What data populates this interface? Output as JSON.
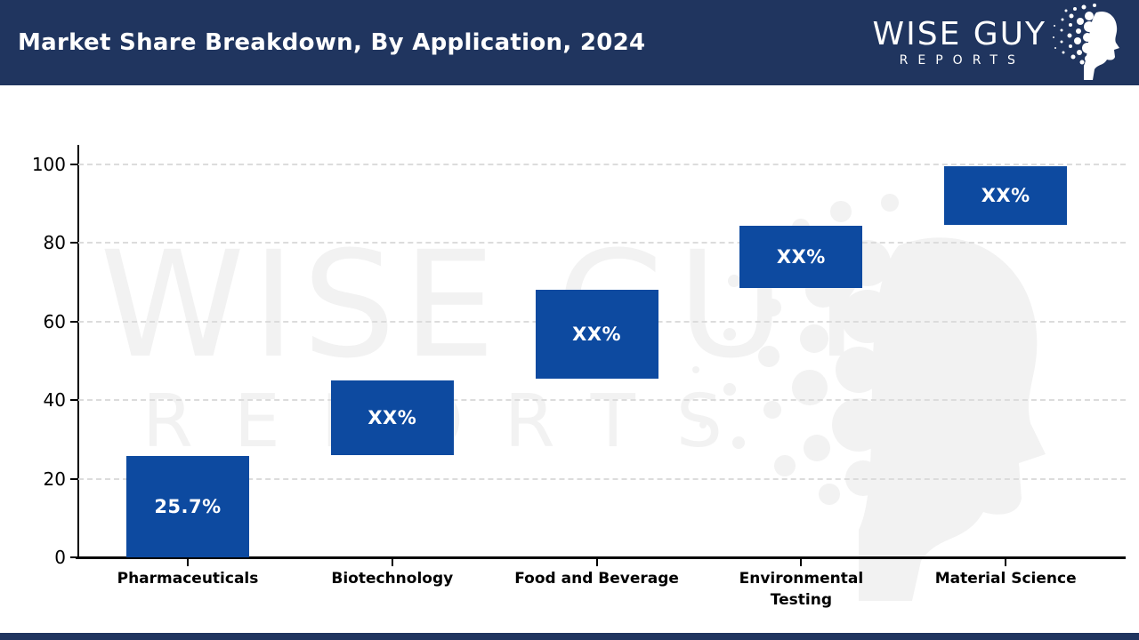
{
  "header": {
    "title": "Market Share Breakdown, By Application, 2024",
    "logo": {
      "line1": "WISE GUY",
      "line2": "REPORTS"
    }
  },
  "watermark": {
    "line1": "WISE GUY",
    "line2": "REPORTS"
  },
  "footer": {},
  "colors": {
    "header_bg": "#20355f",
    "footer_bg": "#20355f",
    "bar": "#0d4aa0",
    "bar_label": "#ffffff",
    "grid": "#dcdcdc",
    "axis": "#000000",
    "watermark": "#f2f2f2"
  },
  "chart_data": {
    "type": "bar",
    "subtype": "waterfall-floating-bars",
    "title": "Market Share Breakdown, By Application, 2024",
    "categories": [
      "Pharmaceuticals",
      "Biotechnology",
      "Food and Beverage",
      "Environmental\nTesting",
      "Material Science"
    ],
    "bars": [
      {
        "category": "Pharmaceuticals",
        "label": "25.7%",
        "start": 0,
        "end": 25.7
      },
      {
        "category": "Biotechnology",
        "label": "XX%",
        "start": 26,
        "end": 45
      },
      {
        "category": "Food and Beverage",
        "label": "XX%",
        "start": 45.4,
        "end": 68
      },
      {
        "category": "Environmental Testing",
        "label": "XX%",
        "start": 68.6,
        "end": 84.4
      },
      {
        "category": "Material Science",
        "label": "XX%",
        "start": 84.7,
        "end": 99.5
      }
    ],
    "xlabel": "",
    "ylabel": "",
    "yticks": [
      0,
      20,
      40,
      60,
      80,
      100
    ],
    "ylim": [
      0,
      105
    ],
    "grid": "horizontal-dashed",
    "legend": "none",
    "value_note": "XX% labels are masked values in the source chart"
  }
}
